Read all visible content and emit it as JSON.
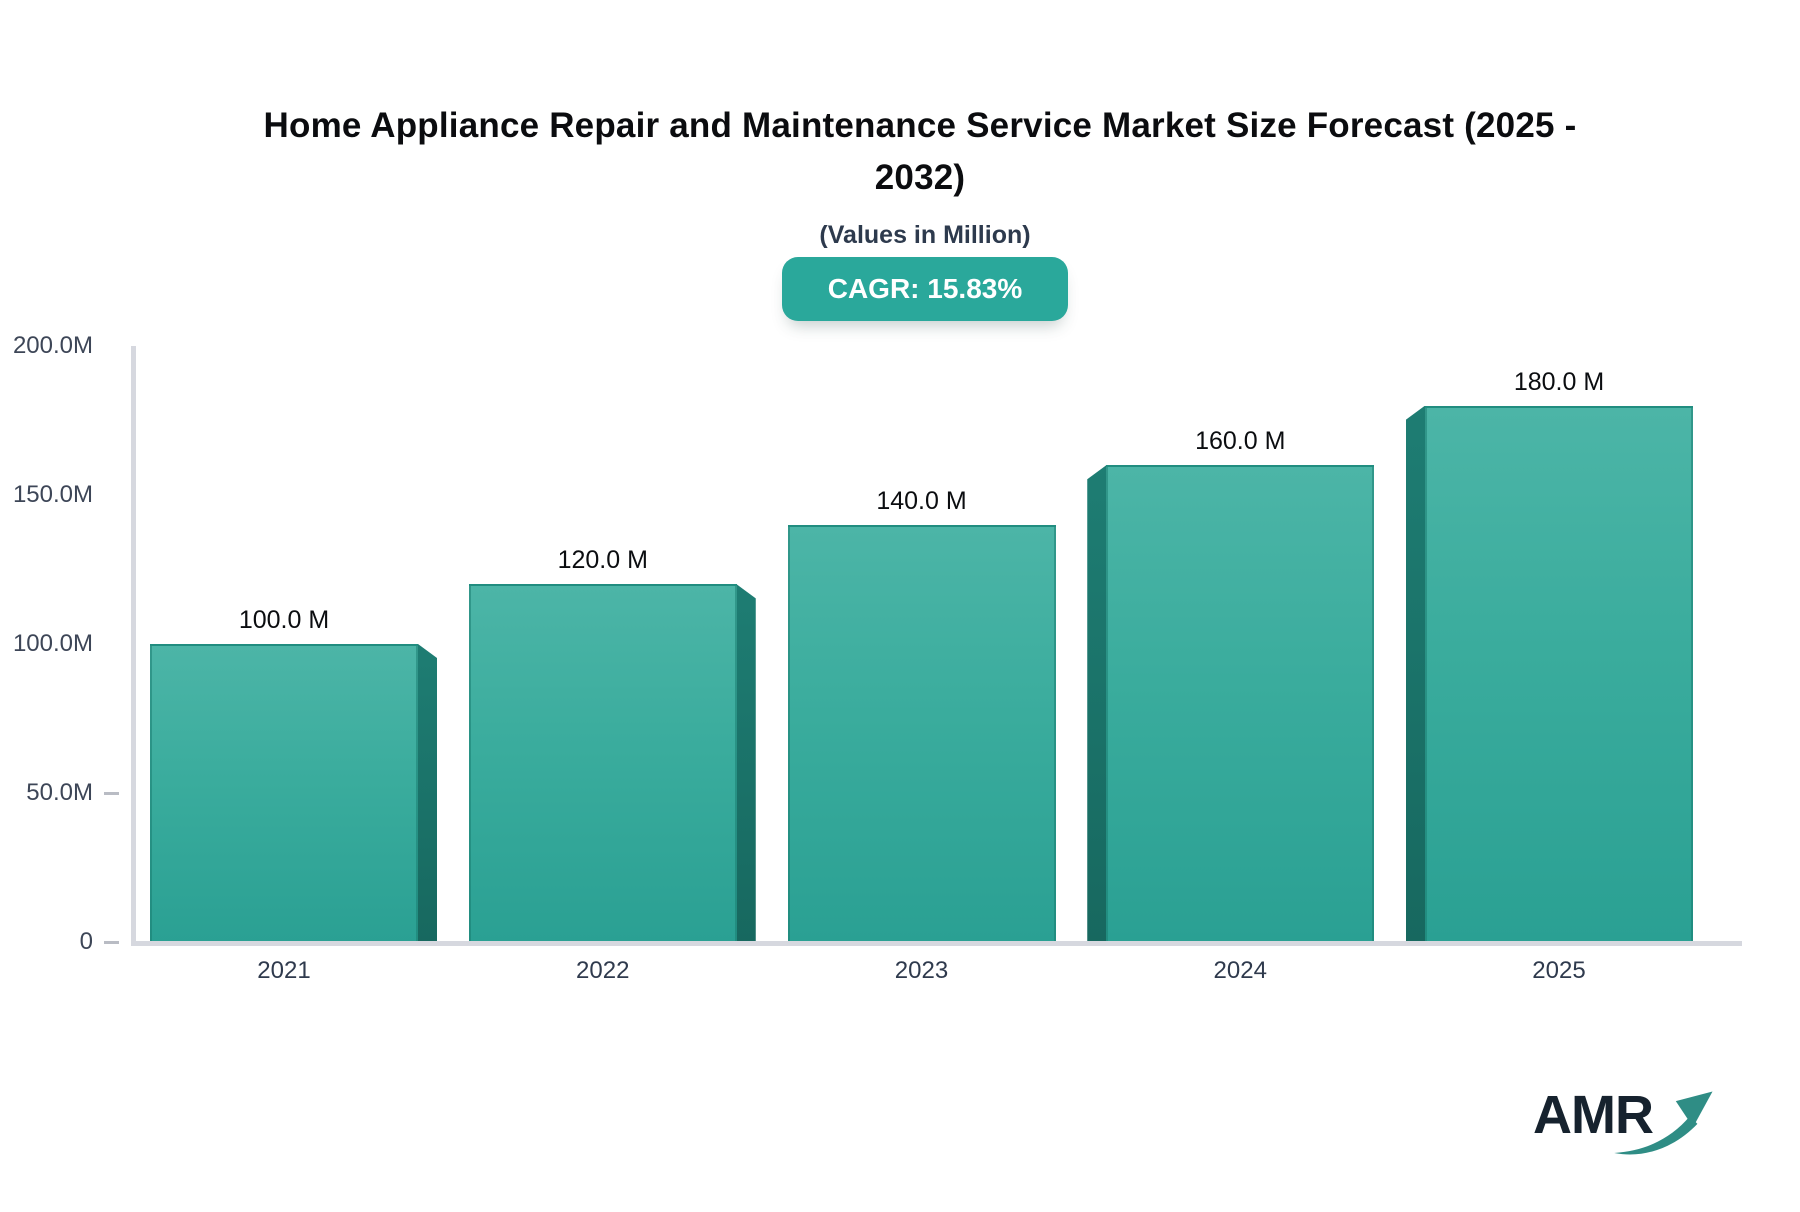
{
  "header": {
    "title_line1": "Home Appliance Repair and Maintenance Service Market Size Forecast (2025 -",
    "title_line2": "2032)",
    "subtitle": "(Values in Million)",
    "cagr_badge": "CAGR: 15.83%",
    "cagr_badge_color": "#2AA89B"
  },
  "chart_data": {
    "type": "bar",
    "title": "Home Appliance Repair and Maintenance Service Market Size Forecast (2025 - 2032)",
    "subtitle": "(Values in Million)",
    "cagr_label": "CAGR: 15.83%",
    "cagr_percent": 15.83,
    "unit": "Million",
    "categories": [
      "2021",
      "2022",
      "2023",
      "2024",
      "2025"
    ],
    "values": [
      100,
      120,
      140,
      160,
      180
    ],
    "value_labels": [
      "100.0 M",
      "120.0 M",
      "140.0 M",
      "160.0 M",
      "180.0 M"
    ],
    "xlabel": "",
    "ylabel": "",
    "ylim": [
      0,
      200
    ],
    "ytick_values": [
      0,
      50,
      100,
      150,
      200
    ],
    "ytick_labels": [
      "0",
      "50.0M",
      "100.0M",
      "150.0M",
      "200.0M"
    ],
    "tick_dash_values": [
      0,
      50
    ],
    "grid": false,
    "legend": "none",
    "bar_style": "3d-bevel",
    "bar_color_top": "#4CB5A7",
    "bar_color_mid": "#3AAC9D",
    "bar_color_bottom": "#2AA093",
    "bar_side_color": "#1E7D73",
    "axis_color": "#D6D8DF",
    "tick_label_color": "#3D4657"
  },
  "logo": {
    "text": "AMR",
    "text_color": "#16222E",
    "arrow_color": "#2F8D85"
  }
}
